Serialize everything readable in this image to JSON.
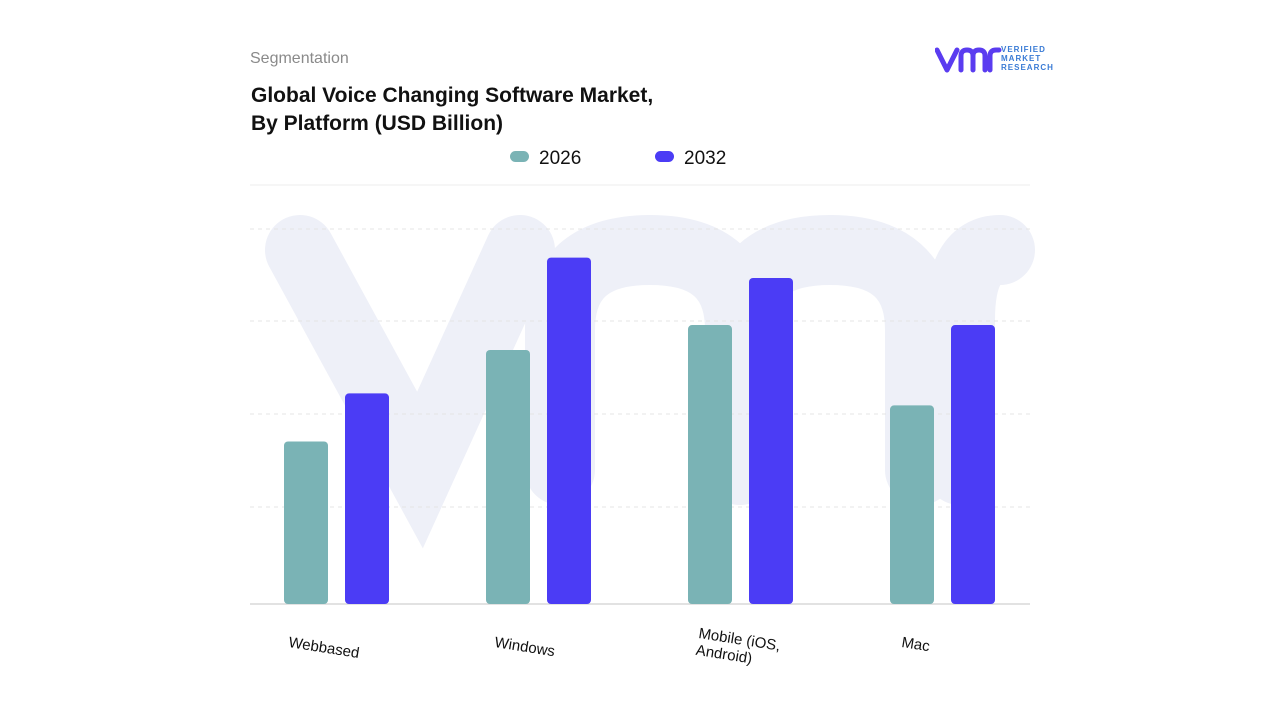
{
  "header": {
    "section_label": "Segmentation",
    "title_line1": "Global Voice Changing Software Market,",
    "title_line2": "By Platform (USD Billion)"
  },
  "logo": {
    "mark": "vmr",
    "line1": "VERIFIED",
    "line2": "MARKET",
    "line3": "RESEARCH",
    "color": "#5a3cf0",
    "text_color": "#3a7bd5"
  },
  "legend": [
    {
      "label": "2026",
      "color": "#7ab3b5"
    },
    {
      "label": "2032",
      "color": "#4b3cf5"
    }
  ],
  "chart_data": {
    "type": "bar",
    "title": "Global Voice Changing Software Market, By Platform (USD Billion)",
    "xlabel": "",
    "ylabel": "",
    "categories": [
      "Webbased",
      "Windows",
      "Mobile (iOS, Android)",
      "Mac"
    ],
    "series": [
      {
        "name": "2026",
        "values": [
          1.76,
          2.75,
          3.02,
          2.15
        ],
        "color": "#7ab3b5"
      },
      {
        "name": "2032",
        "values": [
          2.28,
          3.75,
          3.53,
          3.02
        ],
        "color": "#4b3cf5"
      }
    ],
    "ylim": [
      0,
      4.06
    ],
    "grid": true,
    "legend_position": "top"
  }
}
